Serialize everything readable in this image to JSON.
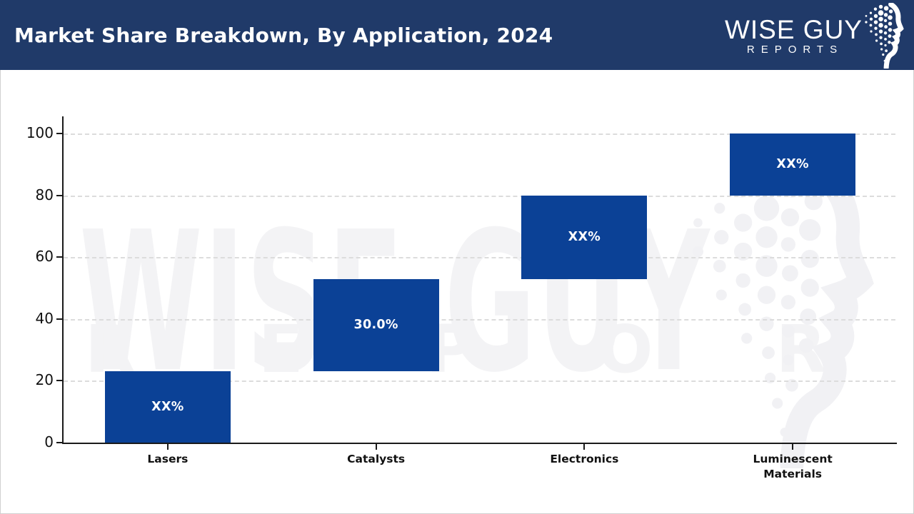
{
  "header": {
    "title": "Market Share Breakdown, By Application, 2024",
    "logo": {
      "line1": "WISE GUY",
      "line2": "REPORTS",
      "icon": "dotted-face-profile-icon"
    }
  },
  "watermark": {
    "line1": "WISE GUY",
    "line2": "R E P O R T S",
    "icon": "dotted-face-profile-icon"
  },
  "colors": {
    "header_bg": "#203a69",
    "bar": "#0b4196",
    "bar_label": "#ffffff",
    "gridline": "#dcdcdc",
    "axis": "#1a1a1a",
    "watermark": "#f3f3f5"
  },
  "chart_data": {
    "type": "bar",
    "subtype": "floating-waterfall",
    "title": "Market Share Breakdown, By Application, 2024",
    "categories": [
      "Lasers",
      "Catalysts",
      "Electronics",
      "Luminescent Materials"
    ],
    "bars": [
      {
        "category": "Lasers",
        "start": 0,
        "end": 23,
        "label": "XX%"
      },
      {
        "category": "Catalysts",
        "start": 23,
        "end": 53,
        "label": "30.0%"
      },
      {
        "category": "Electronics",
        "start": 53,
        "end": 80,
        "label": "XX%"
      },
      {
        "category": "Luminescent Materials",
        "start": 80,
        "end": 100,
        "label": "XX%"
      }
    ],
    "xlabel": "",
    "ylabel": "",
    "ylim": [
      0,
      105
    ],
    "yticks": [
      0,
      20,
      40,
      60,
      80,
      100
    ],
    "grid": "dashed-horizontal",
    "legend": "none"
  }
}
